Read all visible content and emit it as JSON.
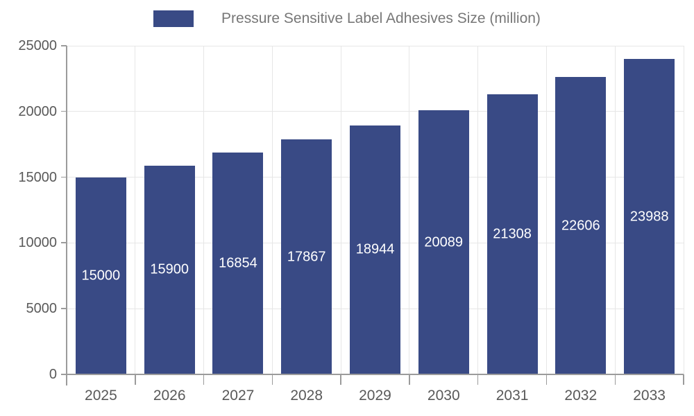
{
  "chart_data": {
    "type": "bar",
    "title": "Pressure Sensitive Label Adhesives Size (million)",
    "legend": "Pressure Sensitive Label Adhesives Size (million)",
    "legend_position": "top",
    "categories": [
      "2025",
      "2026",
      "2027",
      "2028",
      "2029",
      "2030",
      "2031",
      "2032",
      "2033"
    ],
    "values": [
      15000,
      15900,
      16854,
      17867,
      18944,
      20089,
      21308,
      22606,
      23988
    ],
    "value_label_position": "inside-middle",
    "xlabel": "",
    "ylabel": "",
    "ylim": [
      0,
      25000
    ],
    "ytick_step": 5000,
    "yticks": [
      0,
      5000,
      10000,
      15000,
      20000,
      25000
    ],
    "grid": true,
    "bar_color": "#394A85"
  },
  "colors": {
    "bar": "#394A85",
    "grid": "#E6E6E6",
    "axis": "#9B9B9B",
    "tick_text": "#595959",
    "legend_text": "#777777",
    "value_label": "#FFFFFF",
    "background": "#FFFFFF"
  }
}
